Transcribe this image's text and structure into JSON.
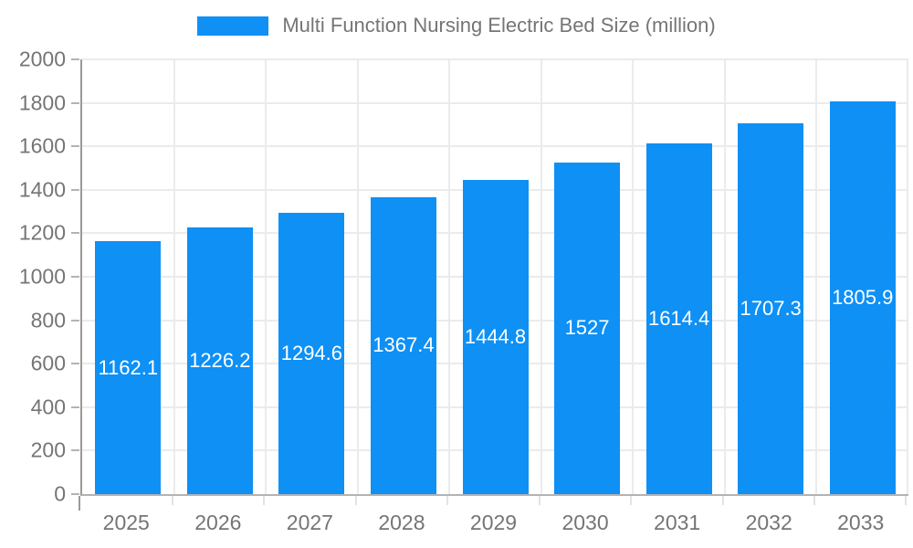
{
  "chart_data": {
    "type": "bar",
    "title": "Multi Function Nursing Electric Bed Size (million)",
    "categories": [
      "2025",
      "2026",
      "2027",
      "2028",
      "2029",
      "2030",
      "2031",
      "2032",
      "2033"
    ],
    "values": [
      1162.1,
      1226.2,
      1294.6,
      1367.4,
      1444.8,
      1527,
      1614.4,
      1707.3,
      1805.9
    ],
    "xlabel": "",
    "ylabel": "",
    "ylim": [
      0,
      2000
    ],
    "y_ticks": [
      0,
      200,
      400,
      600,
      800,
      1000,
      1200,
      1400,
      1600,
      1800,
      2000
    ],
    "grid": true,
    "legend_position": "top-center",
    "value_labels": "inside-center",
    "colors": {
      "bar": "#0e90f5",
      "value_label": "#ffffff",
      "axis_label": "#757575",
      "legend_text": "#757575",
      "gridline": "#ebebeb",
      "y_axis_line": "#999999",
      "x_axis_line": "#b3b3b3"
    }
  }
}
